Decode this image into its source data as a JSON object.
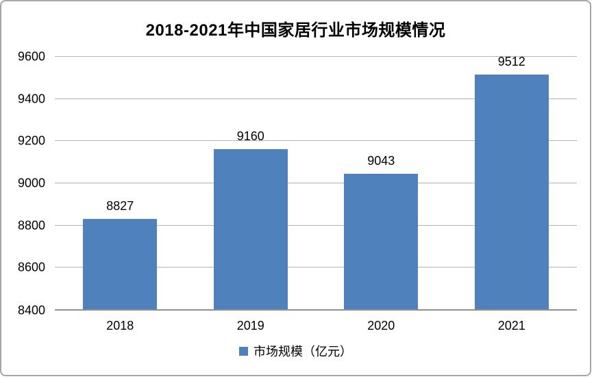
{
  "chart_data": {
    "type": "bar",
    "title": "2018-2021年中国家居行业市场规模情况",
    "categories": [
      "2018",
      "2019",
      "2020",
      "2021"
    ],
    "values": [
      8827,
      9160,
      9043,
      9512
    ],
    "data_labels": [
      "8827",
      "9160",
      "9043",
      "9512"
    ],
    "y_ticks": [
      8400,
      8600,
      8800,
      9000,
      9200,
      9400,
      9600
    ],
    "ylim": [
      8400,
      9600
    ],
    "xlabel": "",
    "ylabel": "",
    "grid": "horizontal",
    "legend_position": "bottom",
    "legend_label": "市场规模（亿元）"
  },
  "colors": {
    "bar": "#4f81bd",
    "gridline": "#b3b3b3",
    "axis_line": "#8f8f8f",
    "text": "#000000",
    "frame_border": "#a6a6a6",
    "background": "#ffffff"
  }
}
